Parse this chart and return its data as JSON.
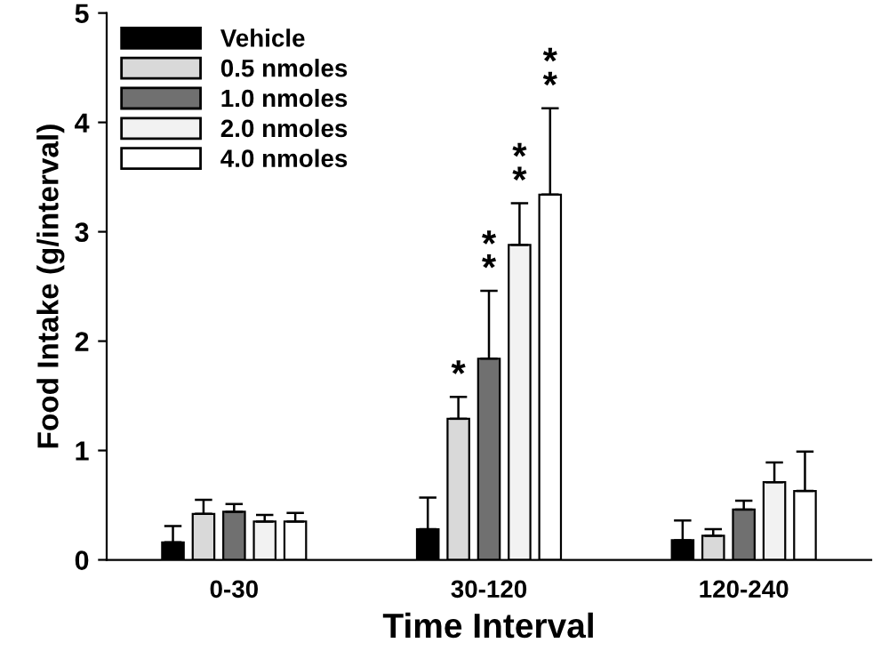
{
  "chart_data": {
    "type": "bar",
    "xlabel": "Time Interval",
    "ylabel": "Food Intake (g/interval)",
    "categories": [
      "0-30",
      "30-120",
      "120-240"
    ],
    "series": [
      {
        "name": "Vehicle",
        "color": "#000000",
        "values": [
          0.16,
          0.28,
          0.18
        ],
        "errors": [
          [
            0.16,
            0.31
          ],
          [
            0.28,
            0.57
          ],
          [
            0.18,
            0.36
          ]
        ],
        "value_labels": [
          null,
          null,
          null
        ]
      },
      {
        "name": "0.5 nmoles",
        "color": "#d9d9d9",
        "values": [
          0.42,
          1.29,
          0.22
        ],
        "errors": [
          [
            0.42,
            0.55
          ],
          [
            1.29,
            1.49
          ],
          [
            0.22,
            0.28
          ]
        ],
        "value_labels": [
          null,
          "*",
          null
        ]
      },
      {
        "name": "1.0 nmoles",
        "color": "#707070",
        "values": [
          0.44,
          1.84,
          0.46
        ],
        "errors": [
          [
            0.44,
            0.51
          ],
          [
            1.84,
            2.46
          ],
          [
            0.46,
            0.54
          ]
        ],
        "value_labels": [
          null,
          "*\n*",
          null
        ]
      },
      {
        "name": "2.0 nmoles",
        "color": "#f2f2f2",
        "values": [
          0.35,
          2.88,
          0.71
        ],
        "errors": [
          [
            0.35,
            0.41
          ],
          [
            2.88,
            3.26
          ],
          [
            0.71,
            0.89
          ]
        ],
        "value_labels": [
          null,
          "*\n*",
          null
        ]
      },
      {
        "name": "4.0 nmoles",
        "color": "#ffffff",
        "values": [
          0.35,
          3.34,
          0.63
        ],
        "errors": [
          [
            0.35,
            0.43
          ],
          [
            3.34,
            4.13
          ],
          [
            0.63,
            0.99
          ]
        ],
        "value_labels": [
          null,
          "*\n*",
          null
        ]
      }
    ],
    "ylim": [
      0,
      5
    ],
    "yticks": [
      0,
      1,
      2,
      3,
      4,
      5
    ],
    "grid": false,
    "legend": "top left"
  }
}
